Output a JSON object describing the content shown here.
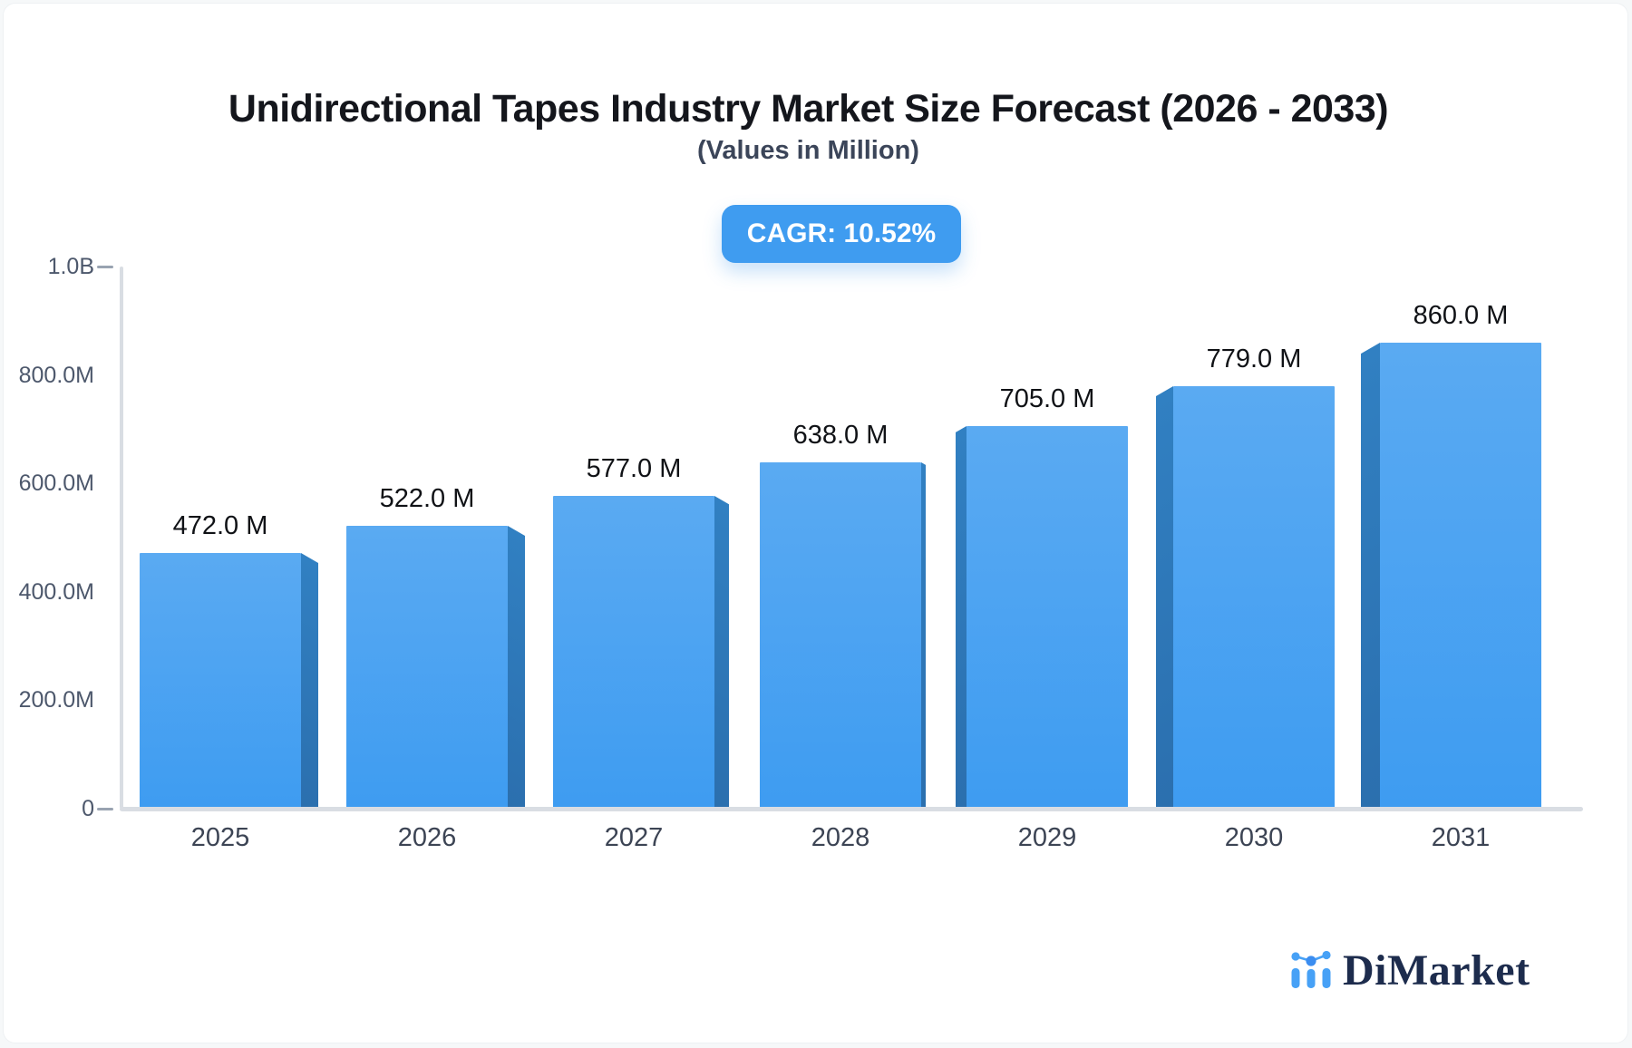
{
  "header": {
    "title": "Unidirectional Tapes Industry Market Size Forecast (2026 - 2033)",
    "subtitle": "(Values in Million)",
    "cagr_badge": "CAGR: 10.52%"
  },
  "chart_data": {
    "type": "bar",
    "title": "Unidirectional Tapes Industry Market Size Forecast (2026 - 2033)",
    "subtitle": "(Values in Million)",
    "annotation": "CAGR: 10.52%",
    "cagr_percent": 10.52,
    "categories": [
      "2025",
      "2026",
      "2027",
      "2028",
      "2029",
      "2030",
      "2031"
    ],
    "values_millions": [
      472,
      522,
      577,
      638,
      705,
      779,
      860
    ],
    "bar_labels": [
      "472.0 M",
      "522.0 M",
      "577.0 M",
      "638.0 M",
      "705.0 M",
      "779.0 M",
      "860.0 M"
    ],
    "y_axis": {
      "tick_labels": [
        "1.0B",
        "800.0M",
        "600.0M",
        "400.0M",
        "200.0M",
        "0"
      ],
      "min_millions": 0,
      "max_millions": 1000
    },
    "xlabel": "",
    "ylabel": "",
    "grid": "off",
    "legend": "none",
    "colors": {
      "bar_fill_top": "#5aaaf2",
      "bar_fill_bottom": "#3e9cf1",
      "bar_side_top": "#3180c2",
      "bar_side_bottom": "#2b6fae",
      "badge": "#3f9cf0",
      "axis": "#d9dde3"
    }
  },
  "footer": {
    "brand_name": "DiMarket"
  }
}
